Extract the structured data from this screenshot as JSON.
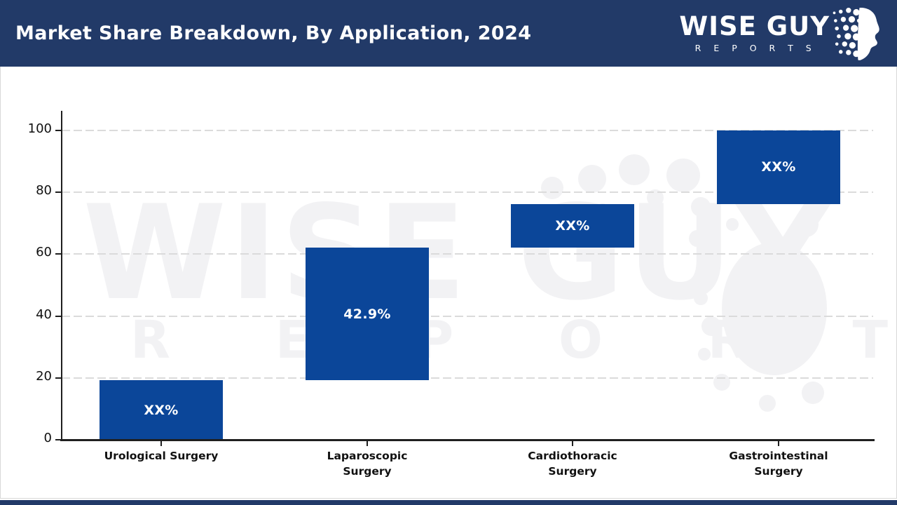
{
  "header": {
    "title": "Market Share Breakdown, By Application, 2024",
    "logo": {
      "line1": "WISE GUY",
      "line2": "R E P O R T S"
    }
  },
  "watermark": {
    "line1": "WISE GUY",
    "line2": "R E P O R T S"
  },
  "colors": {
    "header_bg": "#223A68",
    "bar": "#0B4699",
    "axis": "#1F1F1F",
    "grid": "#DBDBDB",
    "watermark": "#F2F2F4",
    "bar_label_text": "#FFFFFF"
  },
  "chart_data": {
    "type": "bar",
    "subtype": "waterfall-floating",
    "title": "Market Share Breakdown, By Application, 2024",
    "categories": [
      {
        "lines": [
          "Urological Surgery"
        ]
      },
      {
        "lines": [
          "Laparoscopic",
          "Surgery"
        ]
      },
      {
        "lines": [
          "Cardiothoracic",
          "Surgery"
        ]
      },
      {
        "lines": [
          "Gastrointestinal",
          "Surgery"
        ]
      }
    ],
    "bars": [
      {
        "label": "XX%",
        "start": 0,
        "end": 19.2
      },
      {
        "label": "42.9%",
        "start": 19.2,
        "end": 62.1
      },
      {
        "label": "XX%",
        "start": 62.1,
        "end": 76.3
      },
      {
        "label": "XX%",
        "start": 76.3,
        "end": 100
      }
    ],
    "ylim": [
      0,
      100
    ],
    "yticks": [
      0,
      20,
      40,
      60,
      80,
      100
    ],
    "xlabel": "",
    "ylabel": "",
    "grid": "horizontal-dashed",
    "legend": "none"
  }
}
